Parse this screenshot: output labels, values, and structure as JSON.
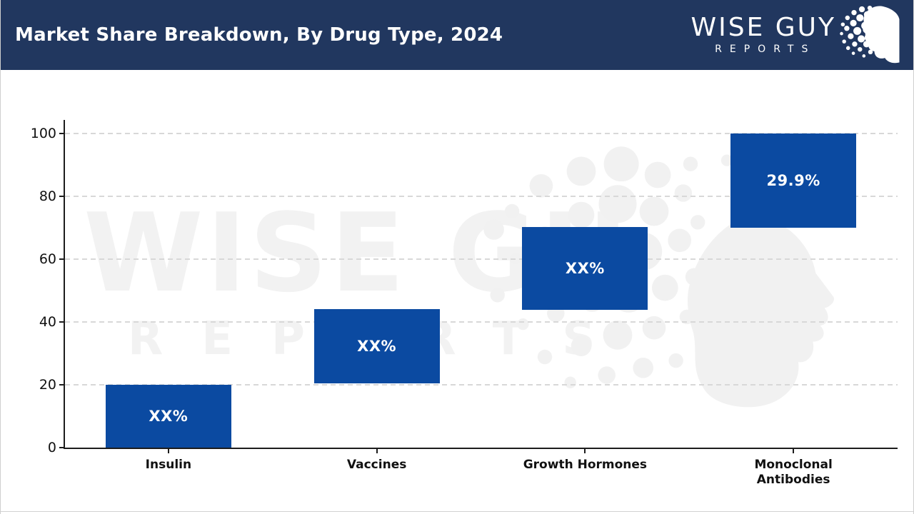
{
  "header": {
    "title": "Market Share Breakdown, By Drug Type, 2024",
    "logo": {
      "line1": "WISE GUY",
      "line2": "REPORTS"
    }
  },
  "watermark": {
    "line1": "WISE GU",
    "line2": "REPORTS"
  },
  "chart_data": {
    "type": "bar",
    "subtype": "waterfall",
    "title": "Market Share Breakdown, By Drug Type, 2024",
    "xlabel": "",
    "ylabel": "",
    "ylim": [
      0,
      100
    ],
    "yticks": [
      0,
      20,
      40,
      60,
      80,
      100
    ],
    "grid": "horizontal-dashed",
    "legend": "none",
    "bar_color": "#0b4aa1",
    "value_label_color": "#ffffff",
    "categories": [
      "Insulin",
      "Vaccines",
      "Growth Hormones",
      "Monoclonal Antibodies"
    ],
    "segments": [
      {
        "category": "Insulin",
        "start": 0,
        "end": 20,
        "label": "XX%"
      },
      {
        "category": "Vaccines",
        "start": 20.5,
        "end": 44.1,
        "label": "XX%"
      },
      {
        "category": "Growth Hormones",
        "start": 43.9,
        "end": 70.2,
        "label": "XX%"
      },
      {
        "category": "Monoclonal Antibodies",
        "start": 70.1,
        "end": 100,
        "label": "29.9%"
      }
    ]
  },
  "colors": {
    "header_bg": "#21375f",
    "bar": "#0b4aa1",
    "gridline": "#d8d8d8",
    "axis": "#1c1c1c",
    "watermark": "#f1f1f1",
    "frame_border": "#cfcfcf"
  }
}
